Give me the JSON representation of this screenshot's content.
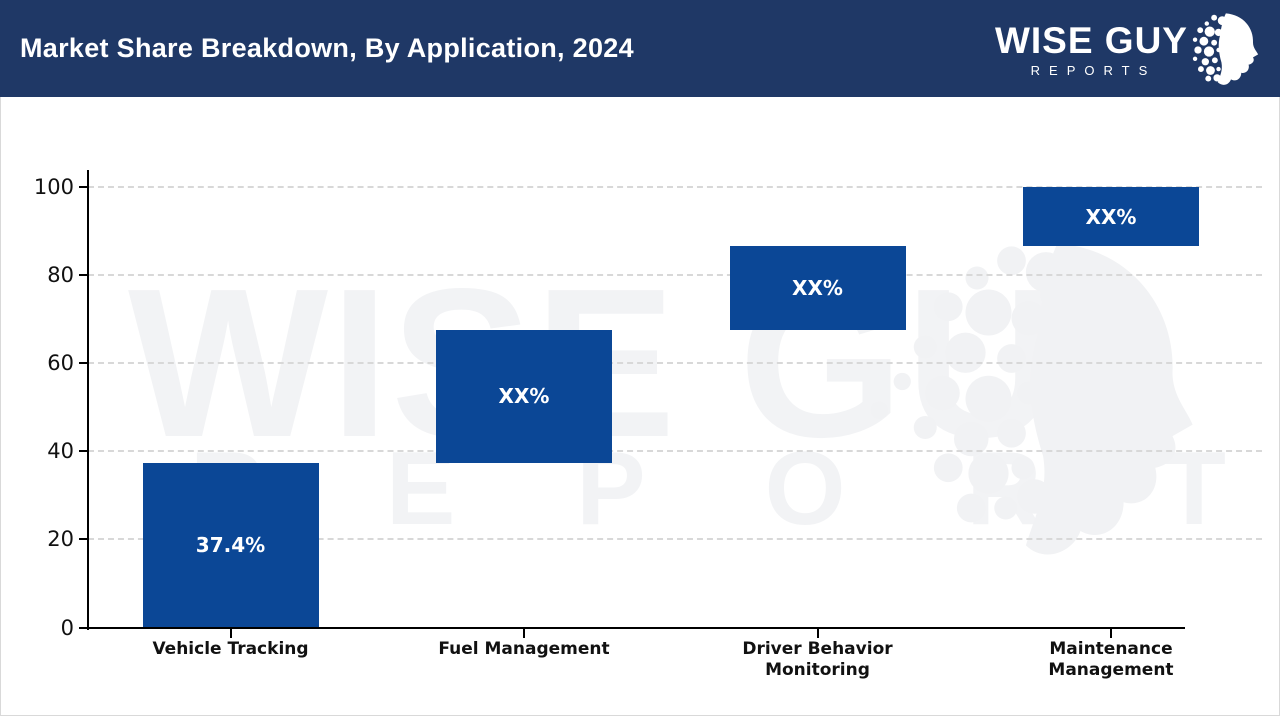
{
  "header": {
    "title": "Market Share Breakdown, By Application, 2024",
    "logo": {
      "line1": "WISE GUY",
      "line2": "REPORTS"
    }
  },
  "watermark": {
    "line1": "WISE GU",
    "line2": "REPORTS"
  },
  "colors": {
    "header_bg": "#1f3866",
    "bar": "#0b4796",
    "grid": "#d8d8d8",
    "watermark": "#f2f3f5",
    "axis": "#000000",
    "tick_text": "#111111",
    "bar_label_text": "#ffffff",
    "title_text": "#ffffff"
  },
  "chart_data": {
    "type": "bar",
    "subtype": "floating-stacked-waterfall",
    "title": "Market Share Breakdown, By Application, 2024",
    "categories": [
      [
        "Vehicle Tracking"
      ],
      [
        "Fuel Management"
      ],
      [
        "Driver Behavior",
        "Monitoring"
      ],
      [
        "Maintenance",
        "Management"
      ]
    ],
    "segments": [
      {
        "name": "Vehicle Tracking",
        "start": 0,
        "end": 37.4,
        "value": 37.4,
        "label": "37.4%"
      },
      {
        "name": "Fuel Management",
        "start": 37.4,
        "end": 67.5,
        "value": 30.1,
        "label": "XX%"
      },
      {
        "name": "Driver Behavior Monitoring",
        "start": 67.5,
        "end": 86.5,
        "value": 19.0,
        "label": "XX%"
      },
      {
        "name": "Maintenance Management",
        "start": 86.5,
        "end": 100,
        "value": 13.5,
        "label": "XX%"
      }
    ],
    "ylim": [
      0,
      100
    ],
    "yticks": [
      0,
      20,
      40,
      60,
      80,
      100
    ],
    "xlabel": "",
    "ylabel": "",
    "grid": "horizontal-dashed",
    "legend": null
  }
}
